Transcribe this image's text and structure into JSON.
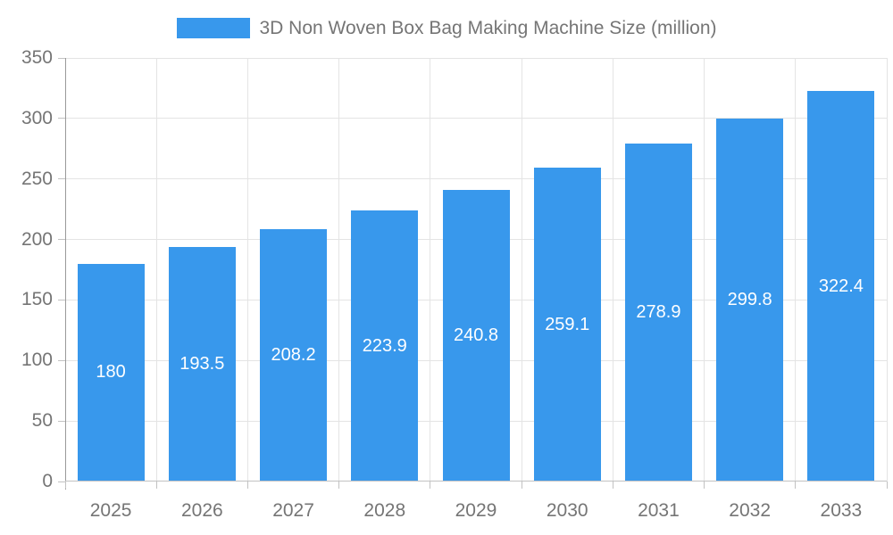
{
  "chart_data": {
    "type": "bar",
    "title": "3D Non Woven Box Bag Making Machine Size (million)",
    "legend": {
      "position": "top",
      "entries": [
        "3D Non Woven Box Bag Making Machine Size (million)"
      ]
    },
    "categories": [
      "2025",
      "2026",
      "2027",
      "2028",
      "2029",
      "2030",
      "2031",
      "2032",
      "2033"
    ],
    "series": [
      {
        "name": "3D Non Woven Box Bag Making Machine Size (million)",
        "values": [
          180,
          193.5,
          208.2,
          223.9,
          240.8,
          259.1,
          278.9,
          299.8,
          322.4
        ]
      }
    ],
    "value_labels": [
      "180",
      "193.5",
      "208.2",
      "223.9",
      "240.8",
      "259.1",
      "278.9",
      "299.8",
      "322.4"
    ],
    "xlabel": "",
    "ylabel": "",
    "ylim": [
      0,
      350
    ],
    "yticks": [
      0,
      50,
      100,
      150,
      200,
      250,
      300,
      350
    ],
    "grid": true,
    "colors": {
      "bar": "#3898EC",
      "bar_label_text": "#ffffff",
      "axis_text": "#757575",
      "gridline": "#e4e4e4",
      "y_axis_line": "#999999",
      "x_axis_line": "#c2c2c2",
      "background": "#ffffff"
    }
  }
}
